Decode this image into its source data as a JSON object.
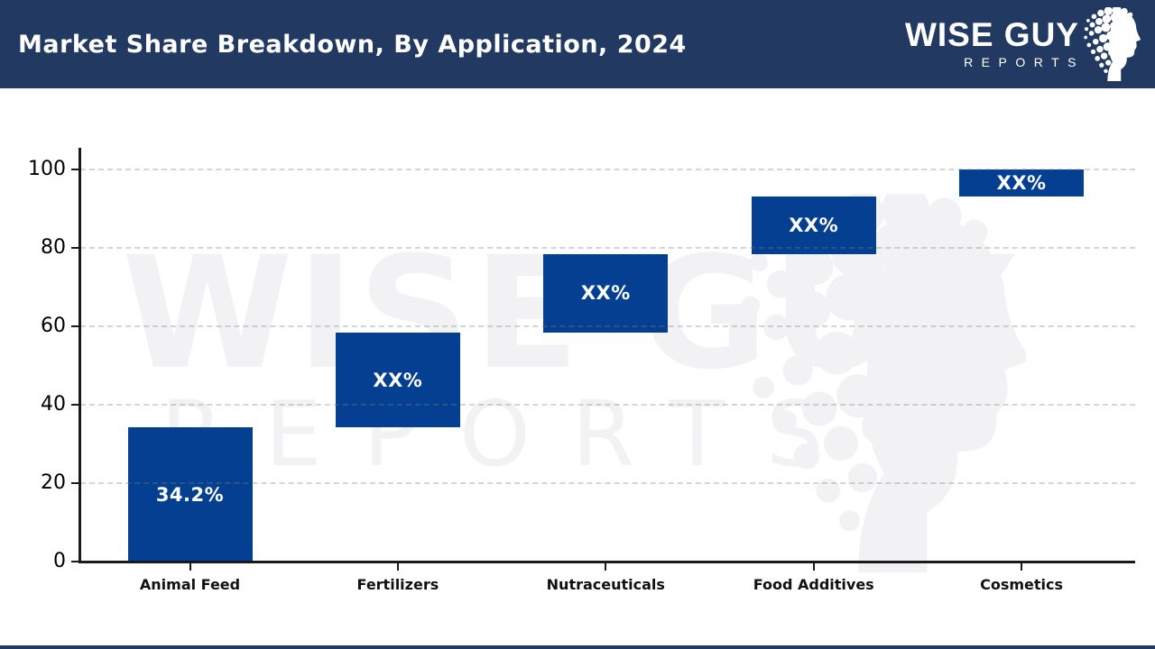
{
  "header": {
    "title": "Market Share Breakdown, By Application, 2024",
    "bg_color": "#223A62",
    "logo": {
      "line1": "WISE GUY",
      "line2": "REPORTS"
    }
  },
  "watermark": {
    "line1": "WISE GUY",
    "line2": "REPORTS",
    "color": "#f2f2f4"
  },
  "footer": {
    "bg_color": "#223A62"
  },
  "chart_data": {
    "type": "bar",
    "subtype": "waterfall",
    "title": "Market Share Breakdown, By Application, 2024",
    "categories": [
      "Animal Feed",
      "Fertilizers",
      "Nutraceuticals",
      "Food Additives",
      "Cosmetics"
    ],
    "segments": [
      {
        "category": "Animal Feed",
        "start": 0,
        "end": 34.2,
        "label": "34.2%"
      },
      {
        "category": "Fertilizers",
        "start": 34.2,
        "end": 58.4,
        "label": "XX%"
      },
      {
        "category": "Nutraceuticals",
        "start": 58.4,
        "end": 78.4,
        "label": "XX%"
      },
      {
        "category": "Food Additives",
        "start": 78.4,
        "end": 93.2,
        "label": "XX%"
      },
      {
        "category": "Cosmetics",
        "start": 93.2,
        "end": 100,
        "label": "XX%"
      }
    ],
    "y_ticks": [
      0,
      20,
      40,
      60,
      80,
      100
    ],
    "ylim": [
      0,
      105.5
    ],
    "xlabel": "",
    "ylabel": "",
    "grid": "horizontal-dashed",
    "legend": "none",
    "bar_color": "#043F92",
    "bar_label_color": "#ffffff",
    "axis_color": "#1a1a1a",
    "grid_color": "rgba(128,128,128,0.33)"
  }
}
